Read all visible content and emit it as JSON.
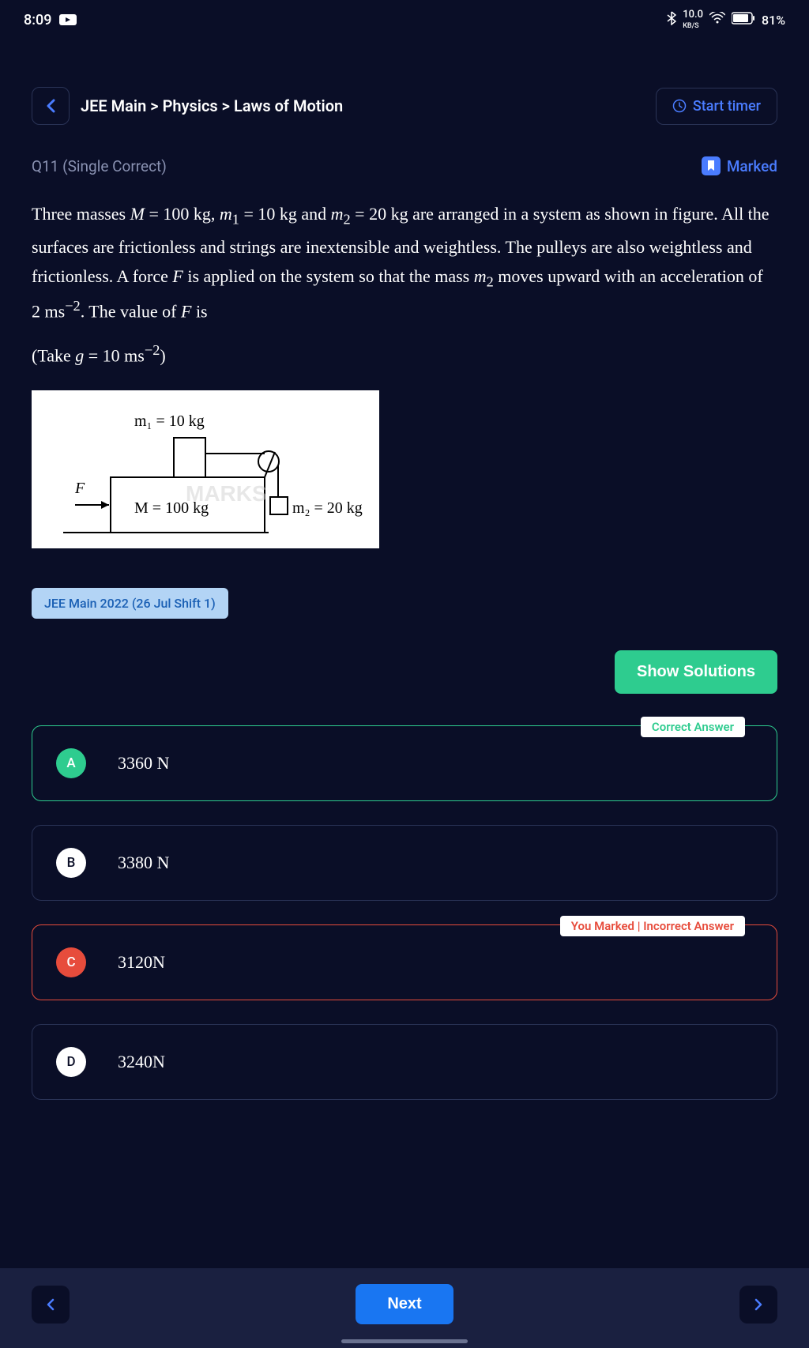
{
  "status": {
    "time": "8:09",
    "network": "10.0",
    "network_unit": "KB/S",
    "battery": "81%"
  },
  "breadcrumb": "JEE Main > Physics > Laws of Motion",
  "timer_label": "Start timer",
  "question_number": "Q11 (Single Correct)",
  "marked_label": "Marked",
  "question_text": "Three masses <i>M</i> = 100&nbsp;kg, <i>m</i><sub>1</sub> = 10&nbsp;kg and <i>m</i><sub>2</sub> = 20&nbsp;kg are arranged in a system as shown in figure. All the surfaces are frictionless and strings are inextensible and weightless. The pulleys are also weightless and frictionless. A force <i>F</i> is applied on the system so that the mass <i>m</i><sub>2</sub> moves upward with an acceleration of 2&nbsp;ms<sup>&minus;2</sup>. The value of <i>F</i> is",
  "take_g": "(Take <i>g</i> = 10&nbsp;ms<sup>&minus;2</sup>)",
  "diagram": {
    "m1_label": "m₁ = 10 kg",
    "M_label": "M = 100 kg",
    "m2_label": "m₂ = 20 kg",
    "F_label": "F"
  },
  "tag": "JEE Main 2022 (26 Jul Shift 1)",
  "show_solutions": "Show Solutions",
  "options": [
    {
      "letter": "A",
      "text": "3360 N",
      "state": "correct",
      "badge": "Correct Answer"
    },
    {
      "letter": "B",
      "text": "3380 N",
      "state": "normal",
      "badge": ""
    },
    {
      "letter": "C",
      "text": "3120N",
      "state": "incorrect",
      "badge": "You Marked | Incorrect Answer"
    },
    {
      "letter": "D",
      "text": "3240N",
      "state": "normal",
      "badge": ""
    }
  ],
  "next_label": "Next",
  "colors": {
    "bg": "#0a0e27",
    "accent": "#4a7cff",
    "correct": "#2ecc8f",
    "incorrect": "#e74c3c",
    "primary": "#1976f2"
  }
}
